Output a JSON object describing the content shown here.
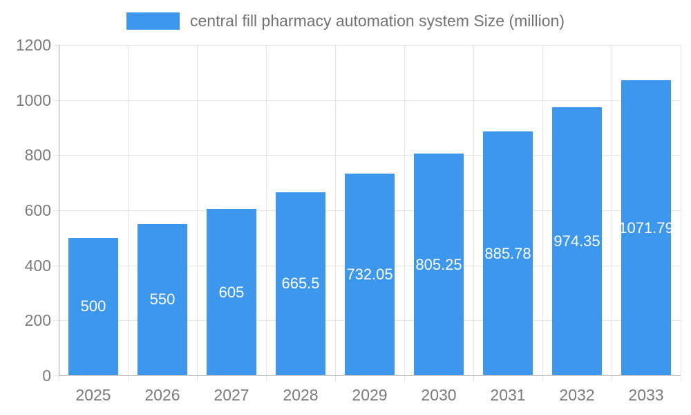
{
  "legend": {
    "label": "central fill pharmacy automation system Size (million)"
  },
  "colors": {
    "bar": "#3C97ED",
    "bar_label": "#FFFFFF",
    "axis_text": "#7B7B7B",
    "legend_text": "#737373",
    "grid_line": "#E4E4E4",
    "axis_line": "#A6A6A6",
    "background": "#FFFFFF"
  },
  "chart_data": {
    "type": "bar",
    "title": "central fill pharmacy automation system Size (million)",
    "categories": [
      "2025",
      "2026",
      "2027",
      "2028",
      "2029",
      "2030",
      "2031",
      "2032",
      "2033"
    ],
    "values": [
      500,
      550,
      605,
      665.5,
      732.05,
      805.25,
      885.78,
      974.35,
      1071.79
    ],
    "bar_labels": [
      "500",
      "550",
      "605",
      "665.5",
      "732.05",
      "805.25",
      "885.78",
      "974.35",
      "1071.79"
    ],
    "xlabel": "",
    "ylabel": "",
    "ylim": [
      0,
      1200
    ],
    "yticks": [
      0,
      200,
      400,
      600,
      800,
      1000,
      1200
    ],
    "ytick_labels": [
      "0",
      "200",
      "400",
      "600",
      "800",
      "1000",
      "1200"
    ],
    "grid": true,
    "legend_position": "top-center",
    "bar_label_position": "inside-center"
  }
}
